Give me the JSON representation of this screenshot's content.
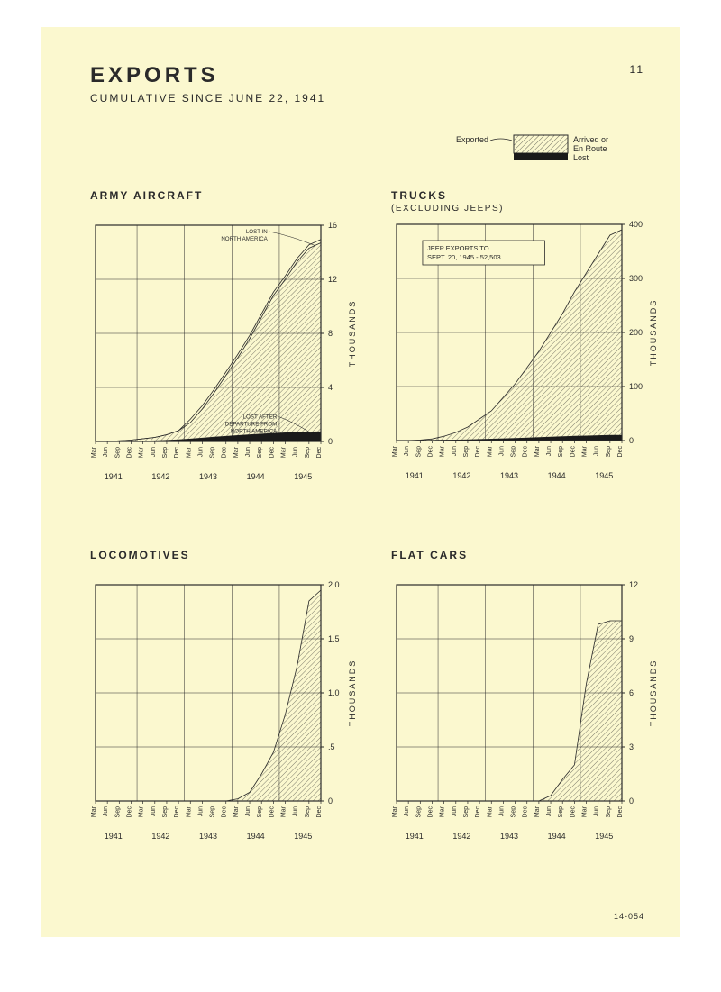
{
  "page_number": "11",
  "footer_code": "14-054",
  "title": "EXPORTS",
  "subtitle": "CUMULATIVE SINCE JUNE 22, 1941",
  "background_color": "#fbf8cf",
  "ink_color": "#2a2a2a",
  "hatch_pattern": {
    "spacing": 4,
    "angle_deg": 45,
    "stroke_width": 0.6
  },
  "legend": {
    "exported_label": "Exported",
    "arrived_label_line1": "Arrived or",
    "arrived_label_line2": "En Route",
    "lost_label": "Lost",
    "lost_fill": "#1a1a1a",
    "arrived_fill": "hatched"
  },
  "x_axis_common": {
    "months": [
      "Mar",
      "Jun",
      "Sep",
      "Dec",
      "Mar",
      "Jun",
      "Sep",
      "Dec",
      "Mar",
      "Jun",
      "Sep",
      "Dec",
      "Mar",
      "Jun",
      "Sep",
      "Dec",
      "Mar",
      "Jun",
      "Sep",
      "Dec"
    ],
    "years": [
      "1941",
      "1942",
      "1943",
      "1944",
      "1945"
    ],
    "month_fontsize": 7,
    "year_fontsize": 9
  },
  "charts": {
    "army_aircraft": {
      "type": "area",
      "title": "ARMY AIRCRAFT",
      "subtitle": "",
      "y_label": "THOUSANDS",
      "ylim": [
        0,
        16
      ],
      "yticks": [
        0,
        4,
        8,
        12,
        16
      ],
      "n_x": 20,
      "series": {
        "exported_total": [
          0,
          0,
          0.05,
          0.1,
          0.2,
          0.3,
          0.5,
          0.8,
          1.4,
          2.4,
          3.6,
          4.9,
          6.2,
          7.6,
          9.2,
          10.8,
          12.0,
          13.3,
          14.3,
          14.7
        ],
        "lost_after_departure": [
          0,
          0,
          0,
          0.02,
          0.03,
          0.05,
          0.08,
          0.12,
          0.18,
          0.25,
          0.32,
          0.38,
          0.44,
          0.5,
          0.55,
          0.6,
          0.64,
          0.68,
          0.7,
          0.72
        ],
        "lost_in_na_gap": 0.25
      },
      "annotations": {
        "lost_in_na": {
          "text": "LOST IN\nNORTH AMERICA",
          "x_idx": 14.5,
          "y_val": 15.4,
          "arrow_to_x": 18.5,
          "arrow_to_y": 14.5
        },
        "lost_after": {
          "text": "LOST AFTER\nDEPARTURE FROM\nNORTH AMERICA",
          "x_idx": 15.3,
          "y_val": 1.7,
          "arrow_to_x": 18.2,
          "arrow_to_y": 0.6
        }
      },
      "title_fontsize": 12,
      "label_fontsize": 9,
      "plot_border": "#2a2a2a",
      "grid_color": "#2a2a2a",
      "grid_width": 0.5,
      "lost_fill": "#1a1a1a"
    },
    "trucks": {
      "type": "area",
      "title": "TRUCKS",
      "subtitle": "(EXCLUDING JEEPS)",
      "y_label": "THOUSANDS",
      "ylim": [
        0,
        400
      ],
      "yticks": [
        0,
        100,
        200,
        300,
        400
      ],
      "n_x": 20,
      "series": {
        "exported_total": [
          0,
          0,
          1,
          3,
          8,
          15,
          25,
          40,
          55,
          80,
          105,
          135,
          165,
          200,
          235,
          275,
          310,
          345,
          380,
          390
        ],
        "lost": [
          0,
          0,
          0.2,
          0.4,
          0.7,
          1,
          1.5,
          2,
          2.6,
          3.3,
          4,
          4.8,
          5.6,
          6.4,
          7.2,
          8,
          8.6,
          9.2,
          9.7,
          10
        ]
      },
      "note_box": {
        "line1": "JEEP EXPORTS TO",
        "line2": "SEPT. 20, 1945 - 52,503",
        "x_idx": 2.2,
        "y_val": 370,
        "w_idx": 10.3,
        "h_val": 45
      },
      "title_fontsize": 12,
      "label_fontsize": 9,
      "plot_border": "#2a2a2a",
      "grid_color": "#2a2a2a",
      "grid_width": 0.5,
      "lost_fill": "#1a1a1a"
    },
    "locomotives": {
      "type": "area",
      "title": "LOCOMOTIVES",
      "subtitle": "",
      "y_label": "THOUSANDS",
      "ylim": [
        0,
        2.0
      ],
      "yticks": [
        0,
        0.5,
        1.0,
        1.5,
        2.0
      ],
      "ytick_labels": [
        "0",
        ".5",
        "1.0",
        "1.5",
        "2.0"
      ],
      "n_x": 20,
      "series": {
        "exported_total": [
          0,
          0,
          0,
          0,
          0,
          0,
          0,
          0,
          0,
          0,
          0,
          0,
          0.02,
          0.08,
          0.25,
          0.45,
          0.8,
          1.25,
          1.85,
          1.95
        ],
        "lost": [
          0,
          0,
          0,
          0,
          0,
          0,
          0,
          0,
          0,
          0,
          0,
          0,
          0,
          0,
          0,
          0,
          0,
          0,
          0,
          0
        ]
      },
      "title_fontsize": 12,
      "label_fontsize": 9,
      "plot_border": "#2a2a2a",
      "grid_color": "#2a2a2a",
      "grid_width": 0.5,
      "lost_fill": "#1a1a1a"
    },
    "flat_cars": {
      "type": "area",
      "title": "FLAT CARS",
      "subtitle": "",
      "y_label": "THOUSANDS",
      "ylim": [
        0,
        12
      ],
      "yticks": [
        0,
        3,
        6,
        9,
        12
      ],
      "n_x": 20,
      "series": {
        "exported_total": [
          0,
          0,
          0,
          0,
          0,
          0,
          0,
          0,
          0,
          0,
          0,
          0,
          0,
          0.3,
          1.2,
          2.0,
          6.5,
          9.8,
          10.0,
          10.0
        ],
        "lost": [
          0,
          0,
          0,
          0,
          0,
          0,
          0,
          0,
          0,
          0,
          0,
          0,
          0,
          0,
          0,
          0,
          0,
          0,
          0,
          0
        ]
      },
      "title_fontsize": 12,
      "label_fontsize": 9,
      "plot_border": "#2a2a2a",
      "grid_color": "#2a2a2a",
      "grid_width": 0.5,
      "lost_fill": "#1a1a1a"
    }
  }
}
